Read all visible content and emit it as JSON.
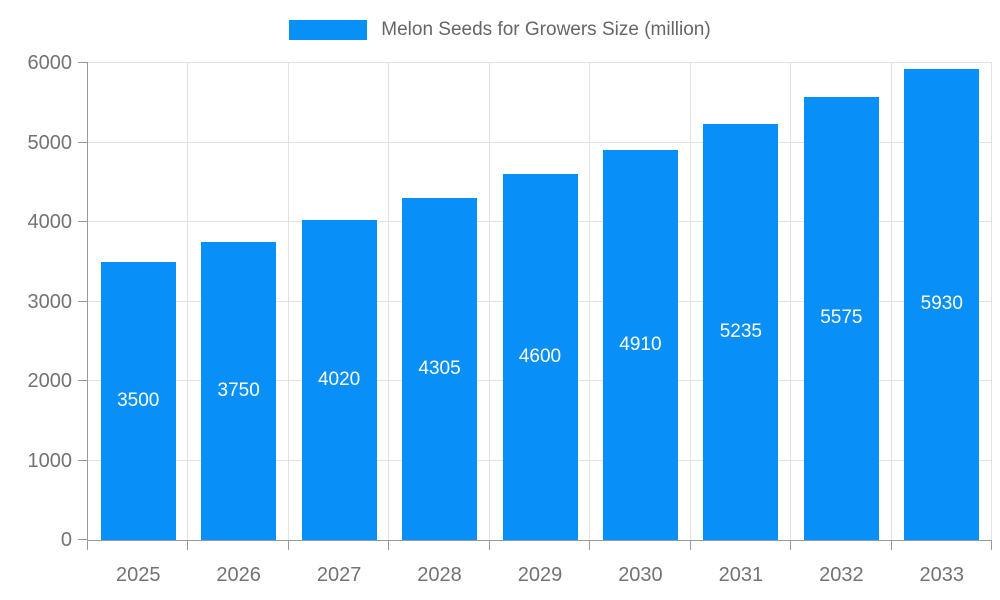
{
  "chart_data": {
    "type": "bar",
    "title": "Melon Seeds for Growers Size (million)",
    "categories": [
      "2025",
      "2026",
      "2027",
      "2028",
      "2029",
      "2030",
      "2031",
      "2032",
      "2033"
    ],
    "values": [
      3500,
      3750,
      4020,
      4305,
      4600,
      4910,
      5235,
      5575,
      5930
    ],
    "xlabel": "",
    "ylabel": "",
    "ylim": [
      0,
      6000
    ],
    "yticks": [
      0,
      1000,
      2000,
      3000,
      4000,
      5000,
      6000
    ],
    "grid": true,
    "legend_position": "top-center",
    "value_labels": "inside-center",
    "colors": {
      "bar": "#0890F8",
      "value_label": "#FFFFFF",
      "axis_text": "#737373",
      "legend_text": "#666666",
      "grid": "#E2E2E2",
      "axis_line": "#999999"
    }
  }
}
